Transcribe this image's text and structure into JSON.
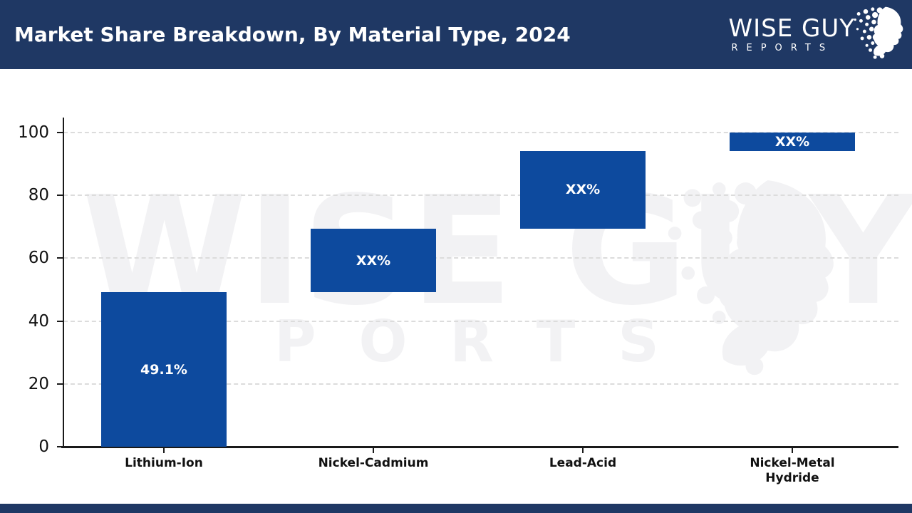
{
  "header": {
    "title": "Market Share Breakdown, By Material Type, 2024",
    "logo": {
      "line1": "WISE GUY",
      "line2": "REPORTS"
    }
  },
  "watermark": {
    "line1": "WISE GUY",
    "line2": "P O R T S"
  },
  "colors": {
    "navy": "#1f3864",
    "bar_blue": "#0d4a9e",
    "axis": "#1a1a1a",
    "gridline": "#dcdcdc",
    "watermark_gray": "#f2f2f4",
    "title_text": "#ffffff",
    "bar_label_text": "#ffffff"
  },
  "chart_data": {
    "type": "bar",
    "subtype": "waterfall",
    "title": "Market Share Breakdown, By Material Type, 2024",
    "xlabel": "",
    "ylabel": "",
    "ylim": [
      0,
      105
    ],
    "yticks": [
      0,
      20,
      40,
      60,
      80,
      100
    ],
    "grid": "dashed-horizontal",
    "legend": "none",
    "bar_color": "#0d4a9e",
    "categories": [
      "Lithium-Ion",
      "Nickel-Cadmium",
      "Lead-Acid",
      "Nickel-Metal Hydride"
    ],
    "bars": [
      {
        "category": "Lithium-Ion",
        "start": 0,
        "end": 49.1,
        "label": "49.1%"
      },
      {
        "category": "Nickel-Cadmium",
        "start": 49.1,
        "end": 69.4,
        "label": "XX%"
      },
      {
        "category": "Lead-Acid",
        "start": 69.4,
        "end": 94.2,
        "label": "XX%"
      },
      {
        "category": "Nickel-Metal Hydride",
        "start": 94.2,
        "end": 100,
        "label": "XX%"
      }
    ]
  }
}
